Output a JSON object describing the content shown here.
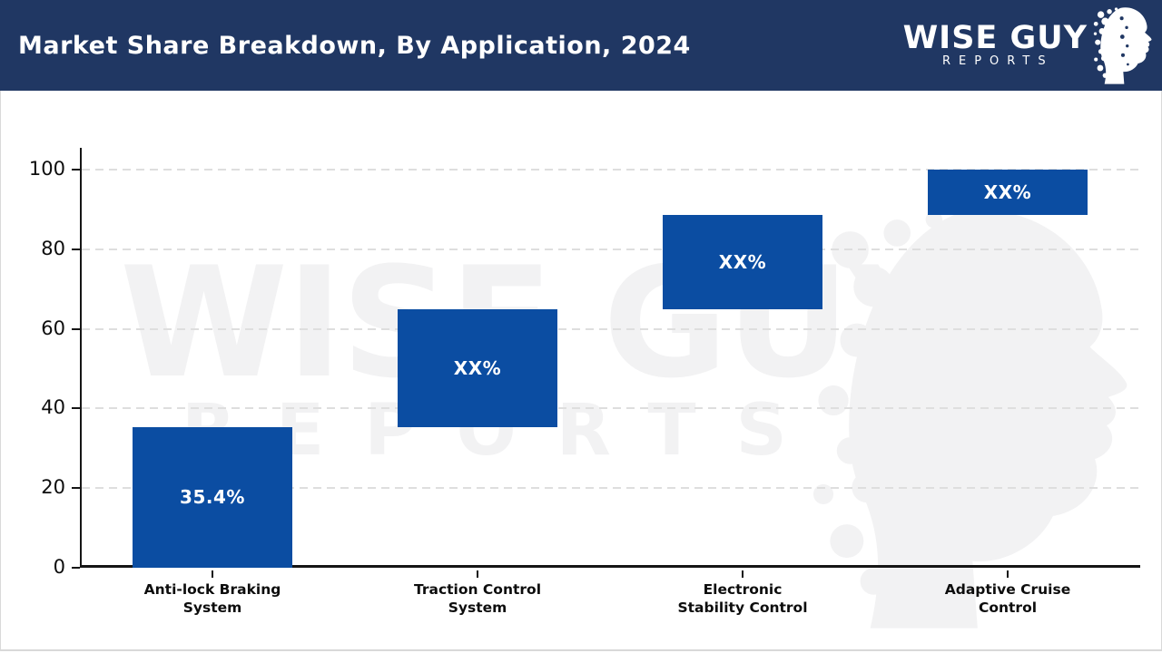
{
  "header": {
    "title": "Market Share Breakdown, By Application, 2024",
    "bg_color": "#203763",
    "logo": {
      "line1": "WISE GUY",
      "line2": "REPORTS"
    }
  },
  "watermark": {
    "line1": "WISE GUY",
    "line2": "REPORTS"
  },
  "colors": {
    "bar": "#0b4da2",
    "header_navy": "#203763",
    "bar_label": "#ffffff",
    "gridline": "#dedede",
    "watermark": "#f2f2f3"
  },
  "chart_data": {
    "type": "bar",
    "subtype": "waterfall",
    "title": "Market Share Breakdown, By Application, 2024",
    "xlabel": "",
    "ylabel": "",
    "grid": "horizontal-dashed",
    "legend": "none",
    "ylim": [
      0,
      105
    ],
    "yticks": [
      0,
      20,
      40,
      60,
      80,
      100
    ],
    "categories": [
      "Anti-lock Braking\nSystem",
      "Traction Control\nSystem",
      "Electronic\nStability Control",
      "Adaptive Cruise\nControl"
    ],
    "segments": [
      {
        "category": "Anti-lock Braking System",
        "start": 0,
        "end": 35.4,
        "label": "35.4%"
      },
      {
        "category": "Traction Control System",
        "start": 35.4,
        "end": 64.9,
        "label": "XX%"
      },
      {
        "category": "Electronic Stability Control",
        "start": 64.9,
        "end": 88.6,
        "label": "XX%"
      },
      {
        "category": "Adaptive Cruise Control",
        "start": 88.6,
        "end": 100,
        "label": "XX%"
      }
    ]
  }
}
